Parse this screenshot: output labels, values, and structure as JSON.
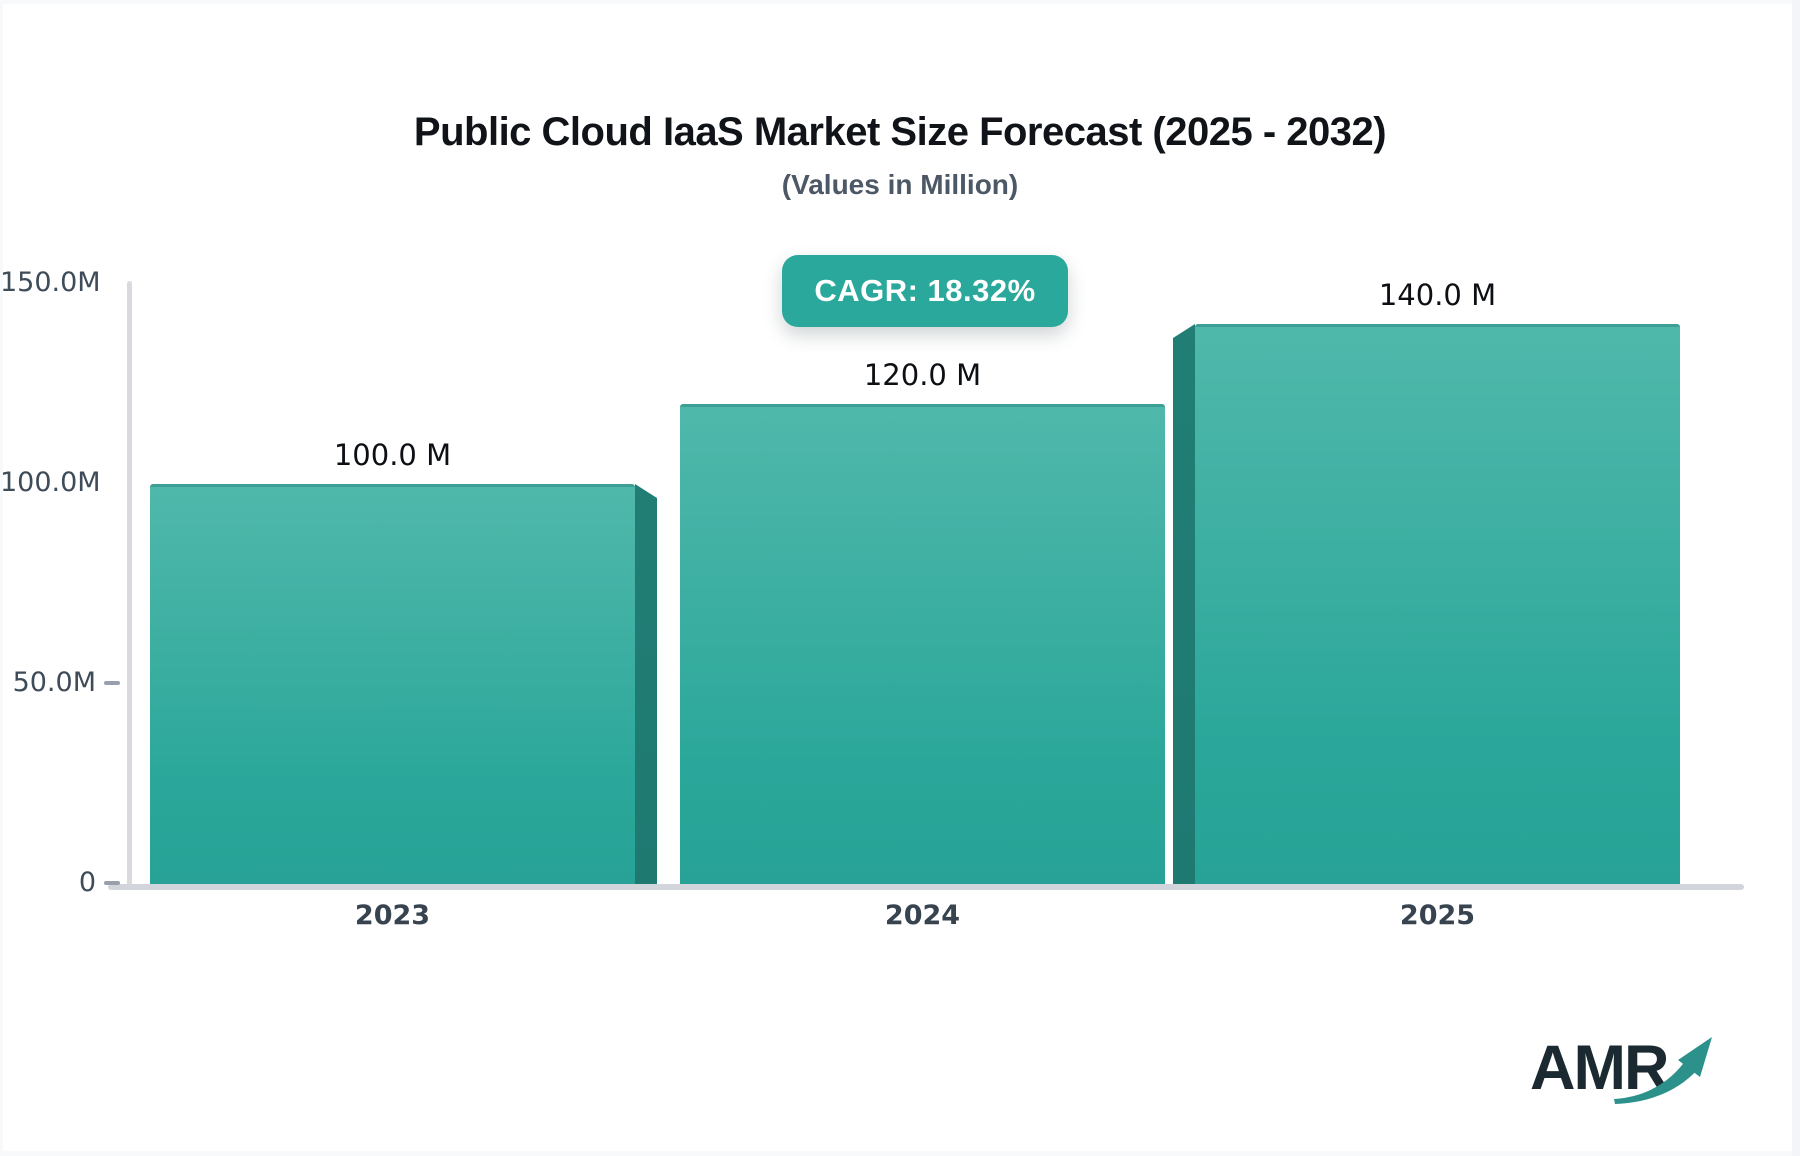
{
  "chart_data": {
    "type": "bar",
    "title": "Public Cloud IaaS Market Size Forecast (2025 - 2032)",
    "subtitle": "(Values in Million)",
    "cagr_badge": "CAGR: 18.32%",
    "unit": "Million",
    "categories": [
      "2023",
      "2024",
      "2025"
    ],
    "values": [
      100,
      120,
      140
    ],
    "value_labels": [
      "100.0 M",
      "120.0 M",
      "140.0 M"
    ],
    "ylim": [
      0,
      150
    ],
    "yticks": [
      {
        "value": 150,
        "label": "150.0M"
      },
      {
        "value": 100,
        "label": "100.0M"
      },
      {
        "value": 50,
        "label": "50.0M"
      },
      {
        "value": 0,
        "label": "0"
      }
    ],
    "grid": "off",
    "legend": "none",
    "colors": {
      "bar_top": "#4fb8ab",
      "bar_bottom": "#28a296",
      "bar_side_3d": "#1e7a71",
      "badge_bg": "#2aa89b",
      "badge_text": "#ffffff",
      "axis_line": "#d8dade",
      "title_text": "#101419",
      "subtitle_text": "#4d5866",
      "tick_text": "#3e4b58"
    }
  },
  "logo": {
    "text": "AMR",
    "arrow_icon": "trend-up-arrow",
    "arrow_color": "#2b918a"
  }
}
